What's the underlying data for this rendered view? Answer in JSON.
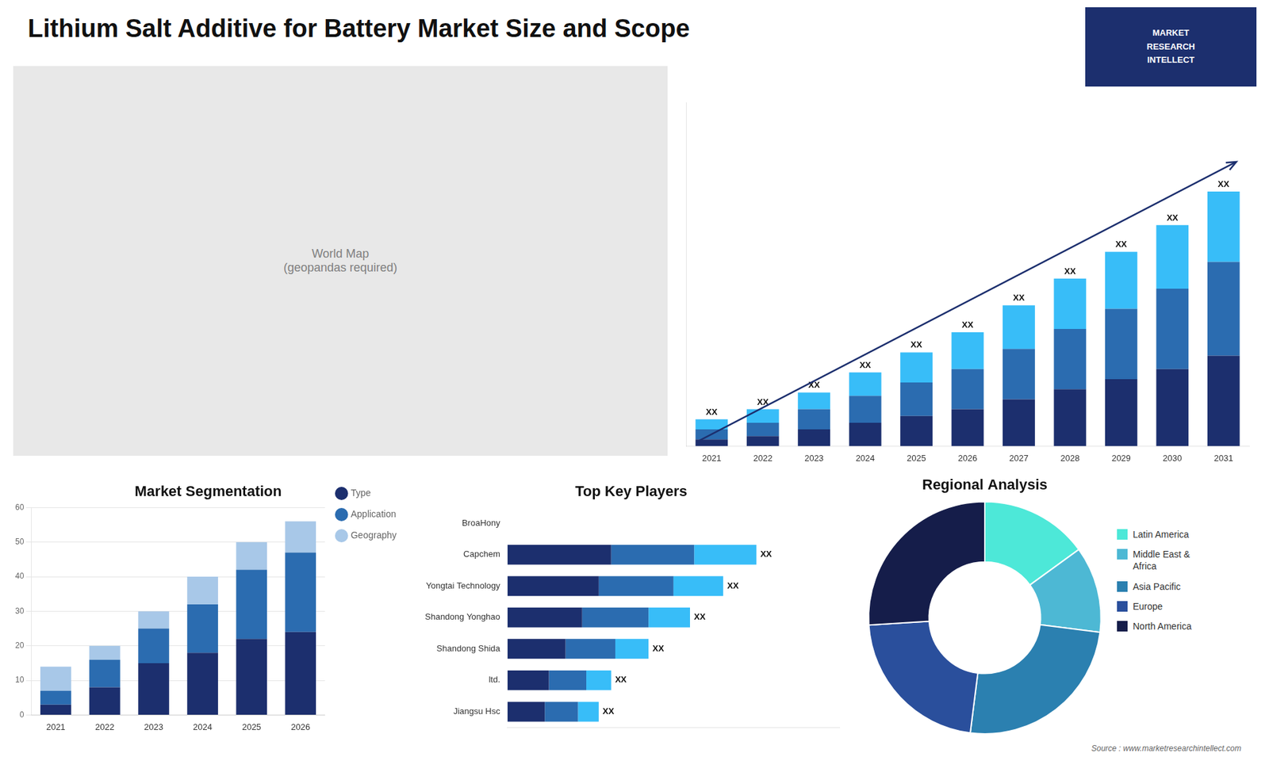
{
  "title": "Lithium Salt Additive for Battery Market Size and Scope",
  "annotations": [
    "World Map\n(geopandas required)",
    "MARKET",
    "RESEARCH",
    "INTELLECT",
    "Source : www.marketresearchintellect.com"
  ],
  "chart_data": [
    {
      "type": "bar",
      "stacked": true,
      "categories": [
        "2021",
        "2022",
        "2023",
        "2024",
        "2025",
        "2026",
        "2027",
        "2028",
        "2029",
        "2030",
        "2031"
      ],
      "series": [
        {
          "color": "#1c2f6e",
          "values": [
            2,
            3,
            5,
            7,
            9,
            11,
            14,
            17,
            20,
            23,
            27
          ]
        },
        {
          "color": "#2b6cb0",
          "values": [
            3,
            4,
            6,
            8,
            10,
            12,
            15,
            18,
            21,
            24,
            28
          ]
        },
        {
          "color": "#38bdf8",
          "values": [
            3,
            4,
            5,
            7,
            9,
            11,
            13,
            15,
            17,
            19,
            21
          ],
          "value_labels": [
            "XX",
            "XX",
            "XX",
            "XX",
            "XX",
            "XX",
            "XX",
            "XX",
            "XX",
            "XX",
            "XX"
          ]
        }
      ],
      "ylim": [
        0,
        102.6
      ],
      "yticks": [],
      "tick_labels": "x",
      "grid": false
    },
    {
      "type": "bar",
      "stacked": true,
      "title": "Market Segmentation",
      "categories": [
        "2021",
        "2022",
        "2023",
        "2024",
        "2025",
        "2026"
      ],
      "series": [
        {
          "name": "Type",
          "color": "#1c2f6e",
          "values": [
            3,
            8,
            15,
            18,
            22,
            24
          ]
        },
        {
          "name": "Application",
          "color": "#2b6cb0",
          "values": [
            4,
            8,
            10,
            14,
            20,
            23
          ]
        },
        {
          "name": "Geography",
          "color": "#a8c8e8",
          "values": [
            7,
            4,
            5,
            8,
            8,
            9
          ]
        }
      ],
      "ylim": [
        0,
        60
      ],
      "yticks": [
        0,
        10,
        20,
        30,
        40,
        50,
        60
      ],
      "grid": true,
      "legend": "right"
    },
    {
      "type": "bar",
      "stacked": true,
      "orientation": "horizontal",
      "title": "Top Key Players",
      "categories": [
        "BroaHony",
        "Capchem",
        "Yongtai Technology",
        "Shandong Yonghao",
        "Shandong Shida",
        "ltd.",
        "Jiangsu Hsc"
      ],
      "series": [
        {
          "color": "#1c2f6e",
          "values": [
            0,
            25,
            22,
            18,
            14,
            10,
            9
          ]
        },
        {
          "color": "#2b6cb0",
          "values": [
            0,
            20,
            18,
            16,
            12,
            9,
            8
          ]
        },
        {
          "color": "#38bdf8",
          "values": [
            0,
            15,
            12,
            10,
            8,
            6,
            5
          ],
          "value_labels": [
            null,
            "XX",
            "XX",
            "XX",
            "XX",
            "XX",
            "XX"
          ]
        }
      ],
      "xlim": [
        0,
        80
      ],
      "xticks": [],
      "tick_labels": "y",
      "grid": false
    },
    {
      "type": "doughnut",
      "title": "Regional Analysis",
      "categories": [
        "Latin America",
        "Middle East &\nAfrica",
        "Asia Pacific",
        "Europe",
        "North America"
      ],
      "values": [
        15,
        12,
        25,
        22,
        26
      ],
      "colors": [
        "#4de8d8",
        "#4db8d4",
        "#2b80b0",
        "#2a4f9c",
        "#151d4a"
      ],
      "legend": "right"
    }
  ]
}
